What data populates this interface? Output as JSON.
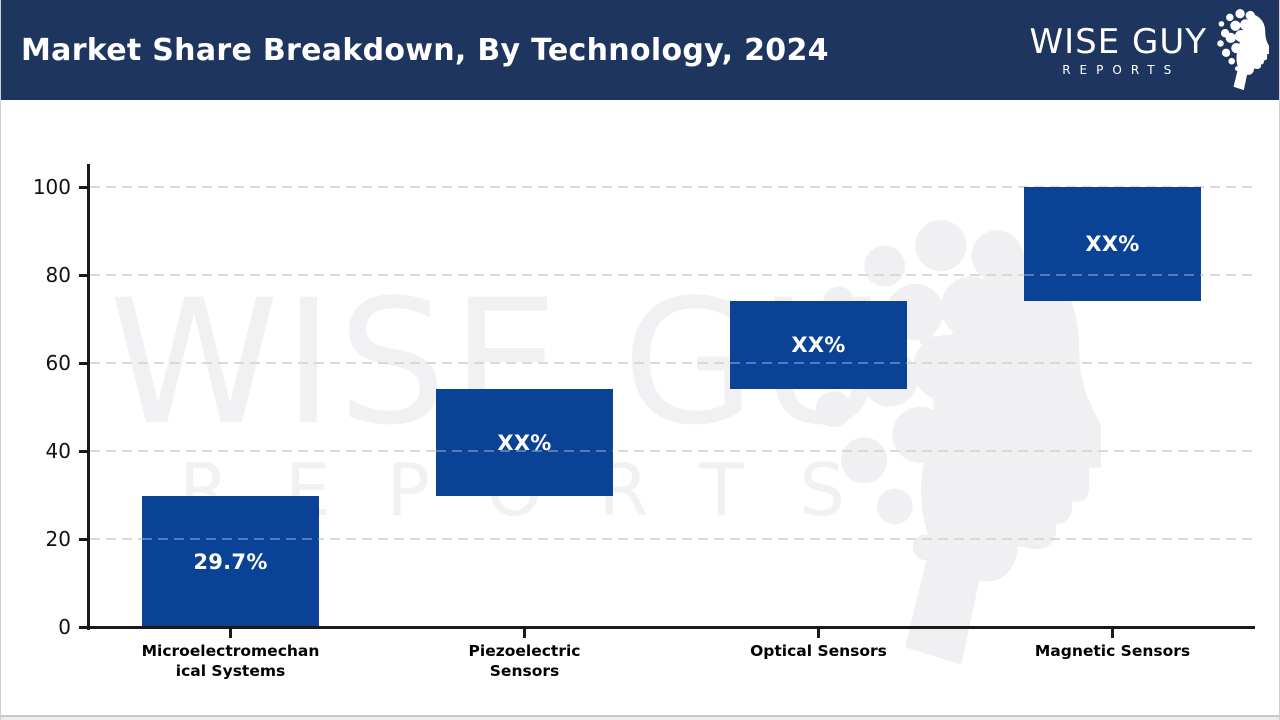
{
  "header": {
    "title": "Market Share Breakdown, By Technology, 2024",
    "logo": {
      "wordmark": "WISE GUY",
      "subtext": "REPORTS"
    }
  },
  "watermark": {
    "wordmark": "WISE GUY",
    "subtext": "REPORTS"
  },
  "chart_data": {
    "type": "bar",
    "subtype": "floating-segment-bars",
    "title": "Market Share Breakdown, By Technology, 2024",
    "categories": [
      "Microelectromechanical Systems",
      "Piezoelectric Sensors",
      "Optical Sensors",
      "Magnetic Sensors"
    ],
    "bars": [
      {
        "category": "Microelectromechanical Systems",
        "label_lines": "Microelectromechan\nical Systems",
        "start": 0,
        "end": 29.7,
        "value_label": "29.7%"
      },
      {
        "category": "Piezoelectric Sensors",
        "label_lines": "Piezoelectric\nSensors",
        "start": 29.7,
        "end": 54,
        "value_label": "XX%"
      },
      {
        "category": "Optical Sensors",
        "label_lines": "Optical Sensors",
        "start": 54,
        "end": 74,
        "value_label": "XX%"
      },
      {
        "category": "Magnetic Sensors",
        "label_lines": "Magnetic Sensors",
        "start": 74,
        "end": 100,
        "value_label": "XX%"
      }
    ],
    "yticks": [
      0,
      20,
      40,
      60,
      80,
      100
    ],
    "ylim": [
      0,
      105
    ],
    "xlabel": "",
    "ylabel": "",
    "grid": "horizontal-dashed",
    "legend": "none",
    "bar_color": "#0a4295",
    "axis_color": "#1a1a1a",
    "grid_color": "#d9d9d9"
  },
  "colors": {
    "header_bg": "#1e3560",
    "watermark": "#f1f1f4"
  }
}
